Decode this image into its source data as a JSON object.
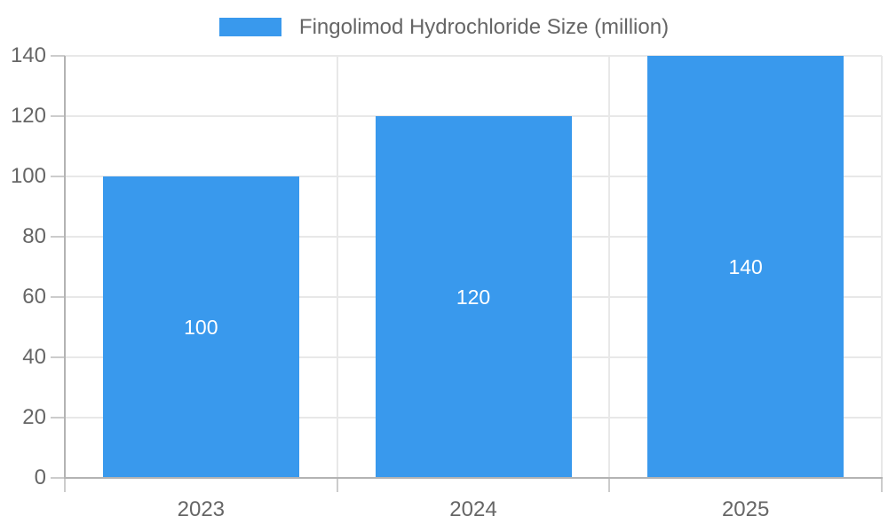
{
  "legend": {
    "label": "Fingolimod Hydrochloride Size (million)"
  },
  "colors": {
    "bar": "#3999ED",
    "bar_label_text": "#ffffff",
    "tick_text": "#666666",
    "legend_text": "#666666",
    "grid_line": "#e8e8e8",
    "tick_line": "#cccccc",
    "axis_line": "#b3b3b3",
    "background": "#ffffff"
  },
  "chart_data": {
    "type": "bar",
    "categories": [
      "2023",
      "2024",
      "2025"
    ],
    "values": [
      100,
      120,
      140
    ],
    "bar_labels": [
      "100",
      "120",
      "140"
    ],
    "series_name": "Fingolimod Hydrochloride Size (million)",
    "title": "",
    "xlabel": "",
    "ylabel": "",
    "ylim": [
      0,
      140
    ],
    "yticks": [
      0,
      20,
      40,
      60,
      80,
      100,
      120,
      140
    ],
    "grid": true,
    "legend_position": "top"
  }
}
